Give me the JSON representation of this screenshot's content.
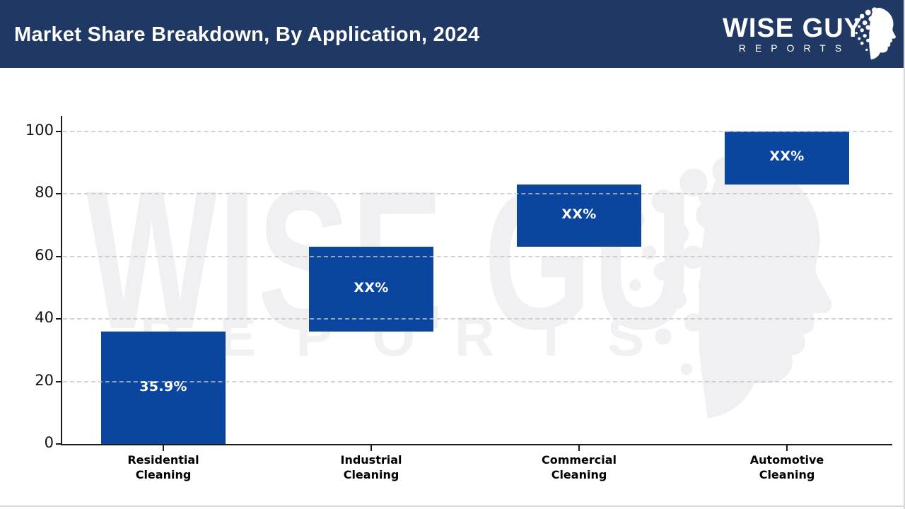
{
  "header": {
    "title": "Market Share Breakdown, By Application, 2024",
    "bg_color": "#1f3864",
    "text_color": "#ffffff",
    "logo": {
      "line1": "WISE GUY",
      "line2": "REPORTS",
      "icon": "dotted-head-profile-icon"
    }
  },
  "watermark": {
    "line1": "WISE GUY",
    "line2": "REPORTS",
    "icon": "dotted-head-profile-icon",
    "color": "#f0f0f3"
  },
  "chart_data": {
    "type": "bar",
    "subtype": "waterfall",
    "title": "Market Share Breakdown, By Application, 2024",
    "xlabel": "",
    "ylabel": "",
    "ylim": [
      0,
      100
    ],
    "yticks": [
      0,
      20,
      40,
      60,
      80,
      100
    ],
    "grid": "horizontal-dashed",
    "legend": "none",
    "bar_color": "#0b469e",
    "label_color": "#ffffff",
    "categories": [
      "Residential Cleaning",
      "Industrial Cleaning",
      "Commercial Cleaning",
      "Automotive Cleaning"
    ],
    "segments": [
      {
        "category": [
          "Residential",
          "Cleaning"
        ],
        "start": 0,
        "end": 35.9,
        "label": "35.9%"
      },
      {
        "category": [
          "Industrial",
          "Cleaning"
        ],
        "start": 35.9,
        "end": 63,
        "label": "XX%"
      },
      {
        "category": [
          "Commercial",
          "Cleaning"
        ],
        "start": 63,
        "end": 83,
        "label": "XX%"
      },
      {
        "category": [
          "Automotive",
          "Cleaning"
        ],
        "start": 83,
        "end": 100,
        "label": "XX%"
      }
    ]
  }
}
